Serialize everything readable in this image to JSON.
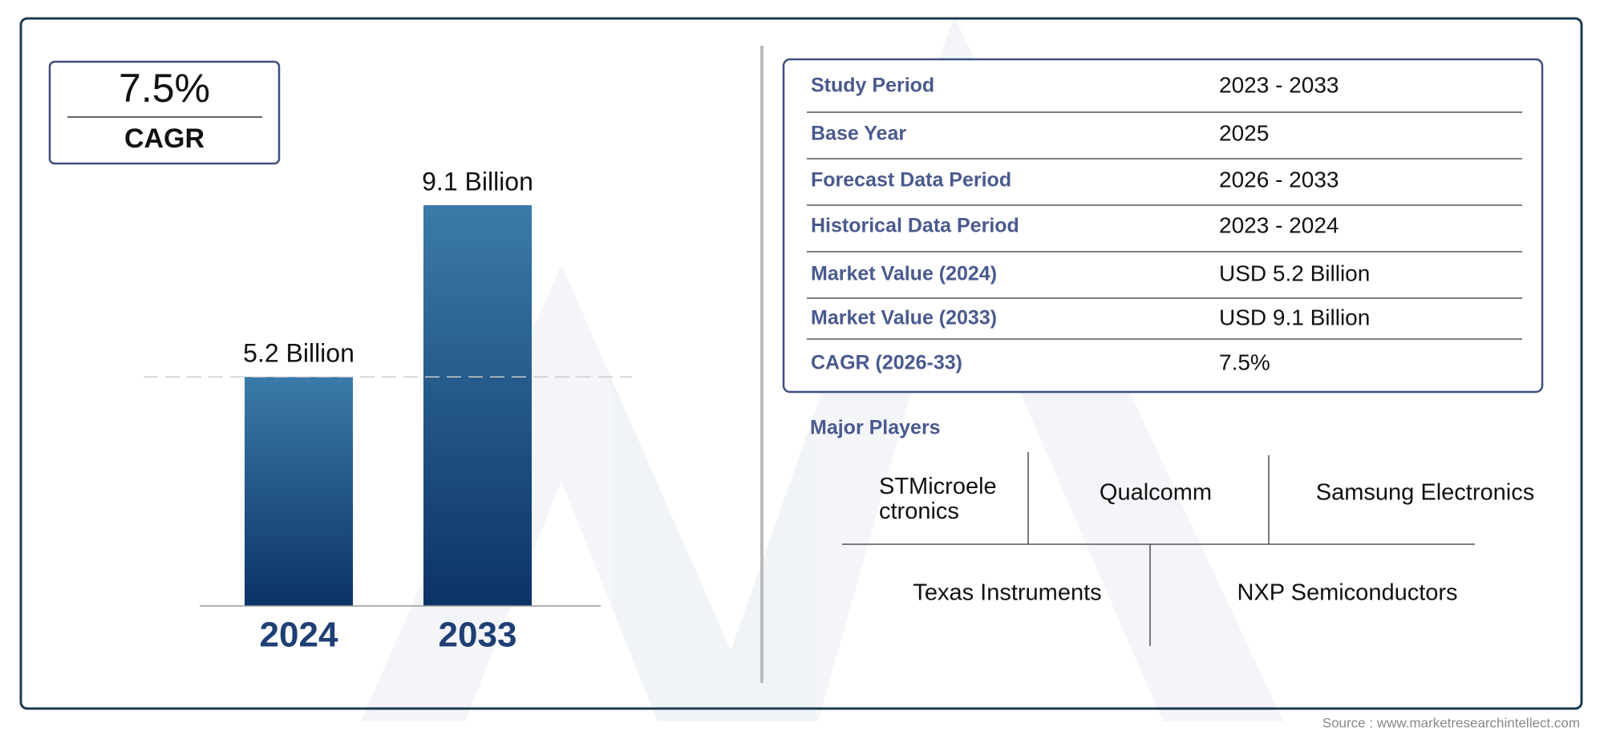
{
  "chart_data": {
    "type": "bar",
    "categories": [
      "2024",
      "2033"
    ],
    "values": [
      5.2,
      9.1
    ],
    "value_labels": [
      "5.2 Billion",
      "9.1 Billion"
    ]
  },
  "cagr": {
    "value": "7.5%",
    "label": "CAGR"
  },
  "table": {
    "rows": [
      [
        "Study Period",
        "2023 - 2033"
      ],
      [
        "Base Year",
        "2025"
      ],
      [
        "Forecast Data Period",
        "2026 - 2033"
      ],
      [
        "Historical Data Period",
        "2023 - 2024"
      ],
      [
        "Market Value (2024)",
        "USD 5.2 Billion"
      ],
      [
        "Market Value (2033)",
        "USD 9.1 Billion"
      ],
      [
        "CAGR (2026-33)",
        "7.5%"
      ]
    ]
  },
  "major_players": {
    "title": "Major Players",
    "players": [
      "STMicroelectronics",
      "Qualcomm",
      "Samsung Electronics",
      "Texas Instruments",
      "NXP Semiconductors"
    ]
  },
  "source": "Source : www.marketresearchintellect.com"
}
